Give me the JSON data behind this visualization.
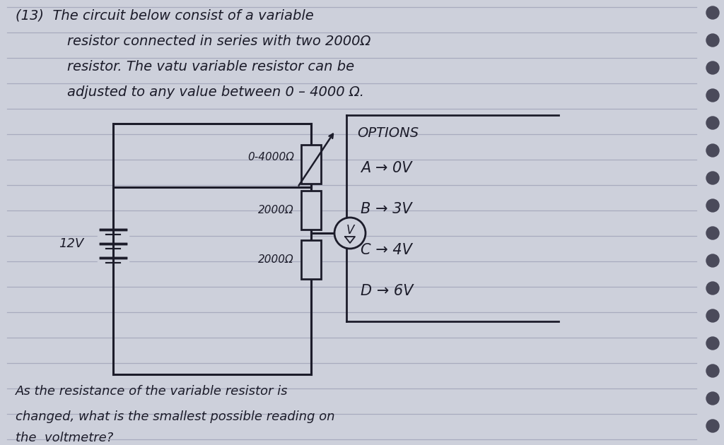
{
  "bg_color": "#cdd0db",
  "line_color": "#a8abbe",
  "text_color": "#1c1c2a",
  "black": "#1c1c2a",
  "figsize": [
    10.24,
    6.3
  ],
  "dpi": 100,
  "options_title": "OPTIONS",
  "options": [
    "A → 0V",
    "B → 3V",
    "C → 4V",
    "D → 6V"
  ],
  "circuit_label_battery": "12V",
  "circuit_label_var": "0-4000Ω",
  "circuit_label_r1": "2000Ω",
  "circuit_label_r2": "2000Ω"
}
